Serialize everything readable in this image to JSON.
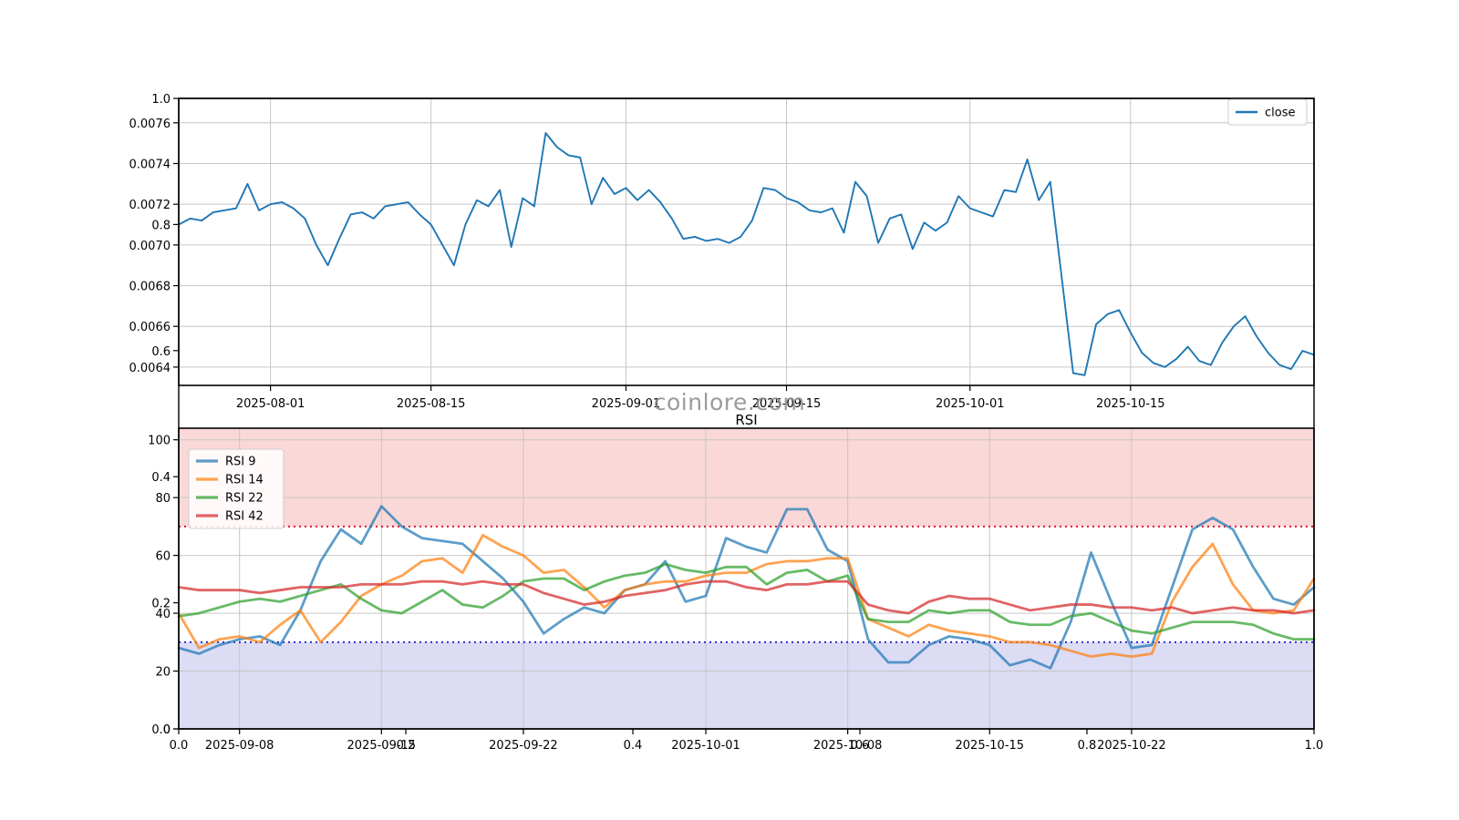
{
  "watermark": "coinlore.com",
  "overlay_axis": {
    "x_tick_labels": [
      "0.0",
      "0.2",
      "0.4",
      "0.6",
      "0.8",
      "1.0"
    ],
    "y_tick_labels": [
      "1.0",
      "0.8",
      "0.6",
      "0.4",
      "0.2",
      "0.0"
    ]
  },
  "chart_data": [
    {
      "type": "line",
      "title": "",
      "xlabel": "",
      "ylabel": "",
      "start_date": "2025-07-24",
      "end_date": "2025-10-31",
      "x_tick_labels": [
        "2025-08-01",
        "2025-08-15",
        "2025-09-01",
        "2025-09-15",
        "2025-10-01",
        "2025-10-15"
      ],
      "ylim": [
        0.00631,
        0.00772
      ],
      "y_ticks": [
        0.0064,
        0.0066,
        0.0068,
        0.007,
        0.0072,
        0.0074,
        0.0076
      ],
      "y_tick_labels": [
        "0.0064",
        "0.0066",
        "0.0068",
        "0.0070",
        "0.0072",
        "0.0074",
        "0.0076"
      ],
      "grid": true,
      "legend_position": "upper right",
      "series": [
        {
          "name": "close",
          "color": "#1f77b4",
          "values": [
            0.0071,
            0.00713,
            0.00712,
            0.00716,
            0.00717,
            0.00718,
            0.0073,
            0.00717,
            0.0072,
            0.00721,
            0.00718,
            0.00713,
            0.007,
            0.0069,
            0.00703,
            0.00715,
            0.00716,
            0.00713,
            0.00719,
            0.0072,
            0.00721,
            0.00715,
            0.0071,
            0.007,
            0.0069,
            0.0071,
            0.00722,
            0.00719,
            0.00727,
            0.00699,
            0.00723,
            0.00719,
            0.00755,
            0.00748,
            0.00744,
            0.00743,
            0.0072,
            0.00733,
            0.00725,
            0.00728,
            0.00722,
            0.00727,
            0.00721,
            0.00713,
            0.00703,
            0.00704,
            0.00702,
            0.00703,
            0.00701,
            0.00704,
            0.00712,
            0.00728,
            0.00727,
            0.00723,
            0.00721,
            0.00717,
            0.00716,
            0.00718,
            0.00706,
            0.00731,
            0.00724,
            0.00701,
            0.00713,
            0.00715,
            0.00698,
            0.00711,
            0.00707,
            0.00711,
            0.00724,
            0.00718,
            0.00716,
            0.00714,
            0.00727,
            0.00726,
            0.00742,
            0.00722,
            0.00731,
            0.00684,
            0.00637,
            0.00636,
            0.00661,
            0.00666,
            0.00668,
            0.00657,
            0.00647,
            0.00642,
            0.0064,
            0.00644,
            0.0065,
            0.00643,
            0.00641,
            0.00652,
            0.0066,
            0.00665,
            0.00655,
            0.00647,
            0.00641,
            0.00639,
            0.00648,
            0.00646
          ]
        }
      ]
    },
    {
      "type": "line",
      "title": "RSI",
      "xlabel": "",
      "ylabel": "",
      "start_date": "2025-09-05",
      "end_date": "2025-10-31",
      "x_tick_labels": [
        "2025-09-08",
        "2025-09-15",
        "2025-09-22",
        "2025-10-01",
        "2025-10-08",
        "2025-10-15",
        "2025-10-22"
      ],
      "ylim": [
        0,
        104
      ],
      "y_ticks": [
        0,
        20,
        40,
        60,
        80,
        100
      ],
      "y_tick_labels": [
        "0",
        "20",
        "40",
        "60",
        "80",
        "100"
      ],
      "grid": true,
      "legend_position": "upper left",
      "overbought_level": 70,
      "oversold_level": 30,
      "bands": [
        {
          "from": 70,
          "to": 104,
          "color": "#fbd8d8"
        },
        {
          "from": 0,
          "to": 30,
          "color": "#dcdcf5"
        }
      ],
      "hlines": [
        {
          "y": 70,
          "color": "#e01030"
        },
        {
          "y": 30,
          "color": "#2121cc"
        }
      ],
      "series": [
        {
          "name": "RSI 9",
          "color": "rgba(31,119,180,0.72)",
          "values": [
            28,
            26,
            29,
            31,
            32,
            29,
            41,
            58,
            69,
            64,
            77,
            70,
            66,
            65,
            64,
            58,
            52,
            44,
            33,
            38,
            42,
            40,
            48,
            50,
            58,
            44,
            46,
            66,
            63,
            61,
            76,
            76,
            62,
            58,
            31,
            23,
            23,
            29,
            32,
            31,
            29,
            22,
            24,
            21,
            37,
            61,
            44,
            28,
            29,
            49,
            69,
            73,
            69,
            56,
            45,
            43,
            49
          ]
        },
        {
          "name": "RSI 14",
          "color": "rgba(255,127,14,0.72)",
          "values": [
            40,
            28,
            31,
            32,
            30,
            36,
            41,
            30,
            37,
            46,
            50,
            53,
            58,
            59,
            54,
            67,
            63,
            60,
            54,
            55,
            49,
            42,
            48,
            50,
            51,
            51,
            53,
            54,
            54,
            57,
            58,
            58,
            59,
            59,
            38,
            35,
            32,
            36,
            34,
            33,
            32,
            30,
            30,
            29,
            27,
            25,
            26,
            25,
            26,
            44,
            56,
            64,
            50,
            41,
            40,
            41,
            52
          ]
        },
        {
          "name": "RSI 22",
          "color": "rgba(44,160,44,0.72)",
          "values": [
            39,
            40,
            42,
            44,
            45,
            44,
            46,
            48,
            50,
            45,
            41,
            40,
            44,
            48,
            43,
            42,
            46,
            51,
            52,
            52,
            48,
            51,
            53,
            54,
            57,
            55,
            54,
            56,
            56,
            50,
            54,
            55,
            51,
            53,
            38,
            37,
            37,
            41,
            40,
            41,
            41,
            37,
            36,
            36,
            39,
            40,
            37,
            34,
            33,
            35,
            37,
            37,
            37,
            36,
            33,
            31,
            31
          ]
        },
        {
          "name": "RSI 42",
          "color": "rgba(214,39,40,0.72)",
          "values": [
            49,
            48,
            48,
            48,
            47,
            48,
            49,
            49,
            49,
            50,
            50,
            50,
            51,
            51,
            50,
            51,
            50,
            50,
            47,
            45,
            43,
            44,
            46,
            47,
            48,
            50,
            51,
            51,
            49,
            48,
            50,
            50,
            51,
            51,
            43,
            41,
            40,
            44,
            46,
            45,
            45,
            43,
            41,
            42,
            43,
            43,
            42,
            42,
            41,
            42,
            40,
            41,
            42,
            41,
            41,
            40,
            41
          ]
        }
      ]
    }
  ]
}
